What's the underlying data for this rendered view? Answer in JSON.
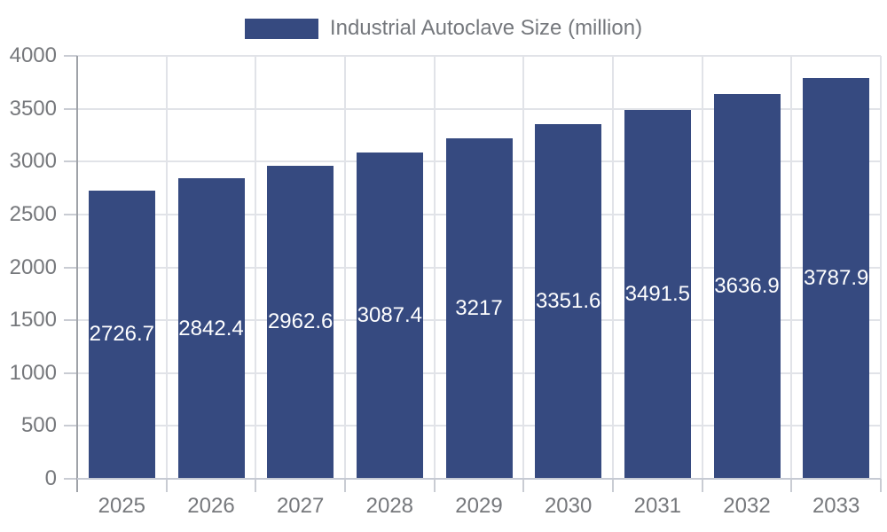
{
  "legend": {
    "label": "Industrial Autoclave Size (million)"
  },
  "colors": {
    "bar": "#364a80",
    "grid": "#e1e3e8",
    "axis_line": "#9fa2a8",
    "baseline": "#c6cad3",
    "tick": "#c9ccd3",
    "axis_text": "#76787c",
    "legend_text": "#75787d",
    "bar_label_text": "#ffffff",
    "background": "#ffffff"
  },
  "chart_data": {
    "type": "bar",
    "title": "Industrial Autoclave Size (million)",
    "categories": [
      "2025",
      "2026",
      "2027",
      "2028",
      "2029",
      "2030",
      "2031",
      "2032",
      "2033"
    ],
    "values": [
      2726.7,
      2842.4,
      2962.6,
      3087.4,
      3217,
      3351.6,
      3491.5,
      3636.9,
      3787.9
    ],
    "value_labels": [
      "2726.7",
      "2842.4",
      "2962.6",
      "3087.4",
      "3217",
      "3351.6",
      "3491.5",
      "3636.9",
      "3787.9"
    ],
    "xlabel": "",
    "ylabel": "",
    "ylim": [
      0,
      4000
    ],
    "ytick_step": 500,
    "ytick_labels": [
      "0",
      "500",
      "1000",
      "1500",
      "2000",
      "2500",
      "3000",
      "3500",
      "4000"
    ],
    "grid": true,
    "legend_position": "top",
    "bar_label_position": "inside-middle"
  }
}
